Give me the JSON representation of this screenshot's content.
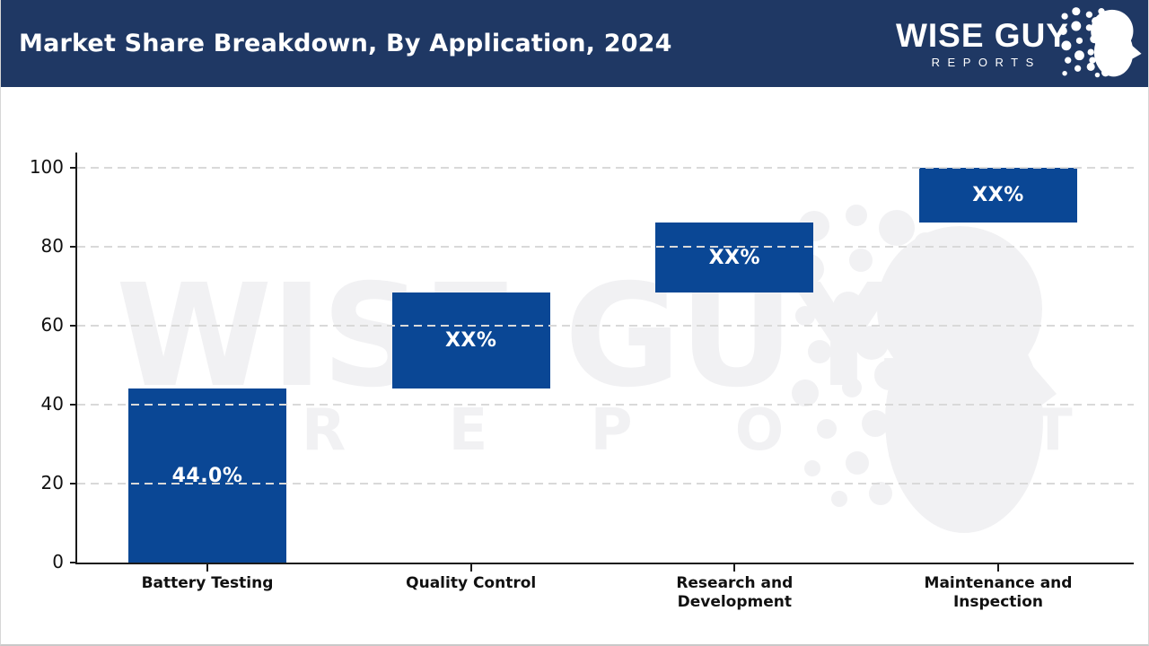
{
  "header": {
    "title": "Market Share Breakdown, By Application, 2024",
    "logo": {
      "line1": "WISE GUY",
      "line2": "REPORTS"
    }
  },
  "watermark": {
    "line1": "WISE GUY.",
    "line2": "R E P O R T S"
  },
  "colors": {
    "header_bg": "#1f3864",
    "bar": "#0a4795",
    "grid": "#d9d9d9",
    "axis": "#1a1a1a",
    "bar_label": "#ffffff",
    "watermark": "#f1f1f3"
  },
  "chart_data": {
    "type": "bar",
    "subtype": "waterfall",
    "title": "Market Share Breakdown, By Application, 2024",
    "categories": [
      "Battery Testing",
      "Quality Control",
      "Research and Development",
      "Maintenance and Inspection"
    ],
    "segments": [
      {
        "label": "Battery Testing",
        "start": 0,
        "end": 44,
        "value_label": "44.0%"
      },
      {
        "label": "Quality Control",
        "start": 44,
        "end": 68.4,
        "value_label": "XX%"
      },
      {
        "label": "Research and Development",
        "start": 68.4,
        "end": 86.1,
        "value_label": "XX%"
      },
      {
        "label": "Maintenance and Inspection",
        "start": 86.1,
        "end": 100,
        "value_label": "XX%"
      }
    ],
    "yticks": [
      0,
      20,
      40,
      60,
      80,
      100
    ],
    "ylim": [
      0,
      100
    ],
    "xlabel": "",
    "ylabel": "",
    "grid": "horizontal-dashed",
    "legend": "none",
    "unit": "%"
  }
}
